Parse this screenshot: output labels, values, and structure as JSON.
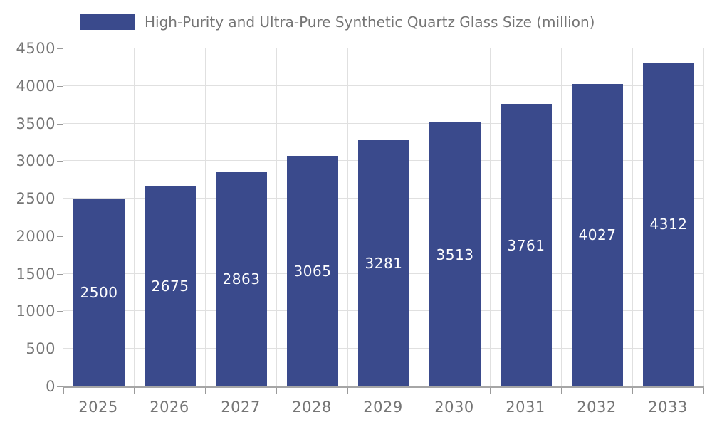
{
  "legend": {
    "label": "High-Purity and Ultra-Pure Synthetic Quartz Glass Size (million)"
  },
  "colors": {
    "bar": "#3A4A8C",
    "axis_text": "#757575",
    "grid_line": "#E0E0E0",
    "axis_line": "#9A9A9A",
    "bar_value_text": "#FFFFFF",
    "background": "#FFFFFF"
  },
  "chart_data": {
    "type": "bar",
    "title": "High-Purity and Ultra-Pure Synthetic Quartz Glass Size (million)",
    "categories": [
      "2025",
      "2026",
      "2027",
      "2028",
      "2029",
      "2030",
      "2031",
      "2032",
      "2033"
    ],
    "values": [
      2500,
      2675,
      2863,
      3065,
      3281,
      3513,
      3761,
      4027,
      4312
    ],
    "xlabel": "",
    "ylabel": "",
    "ylim": [
      0,
      4500
    ],
    "ytick_step": 500,
    "ytick_labels": [
      "0",
      "500",
      "1000",
      "1500",
      "2000",
      "2500",
      "3000",
      "3500",
      "4000",
      "4500"
    ],
    "grid": true,
    "legend_position": "top-left",
    "bar_value_labels": true
  }
}
